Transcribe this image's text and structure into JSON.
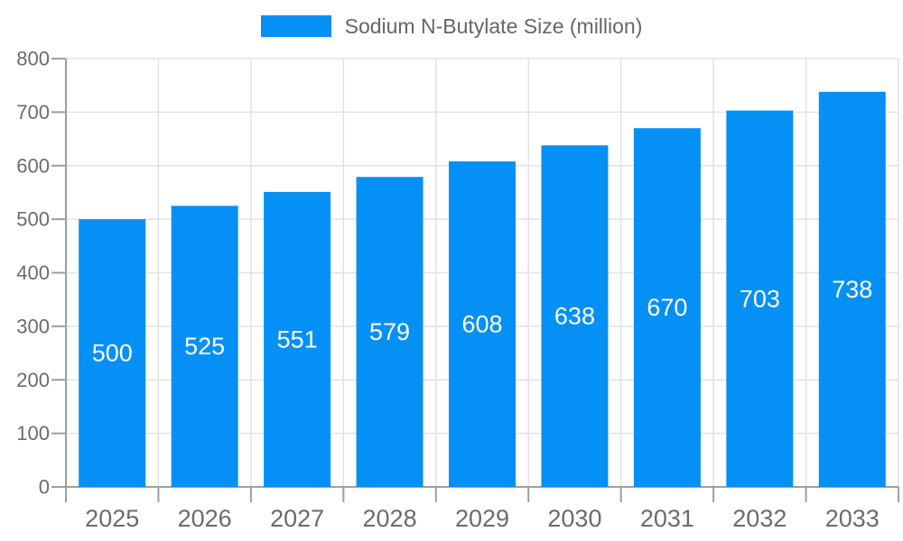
{
  "legend": {
    "label": "Sodium N-Butylate Size (million)"
  },
  "chart_data": {
    "type": "bar",
    "title": "Sodium N-Butylate Size (million)",
    "series": [
      {
        "name": "Sodium N-Butylate Size (million)",
        "values": [
          500,
          525,
          551,
          579,
          608,
          638,
          670,
          703,
          738
        ]
      }
    ],
    "categories": [
      "2025",
      "2026",
      "2027",
      "2028",
      "2029",
      "2030",
      "2031",
      "2032",
      "2033"
    ],
    "xlabel": "",
    "ylabel": "",
    "ylim": [
      0,
      800
    ],
    "ytick_step": 100,
    "ytick_labels": [
      "0",
      "100",
      "200",
      "300",
      "400",
      "500",
      "600",
      "700",
      "800"
    ],
    "grid": true,
    "legend_position": "top-center",
    "bar_value_labels_inside": true,
    "colors": {
      "bar": "#0590f5",
      "bar_value_label": "#ffffff",
      "gridline": "#e2e2e2",
      "axis_line": "#9e9e9e",
      "tick_label": "#6b6b6b",
      "legend_text": "#666666",
      "background": "#ffffff"
    }
  }
}
